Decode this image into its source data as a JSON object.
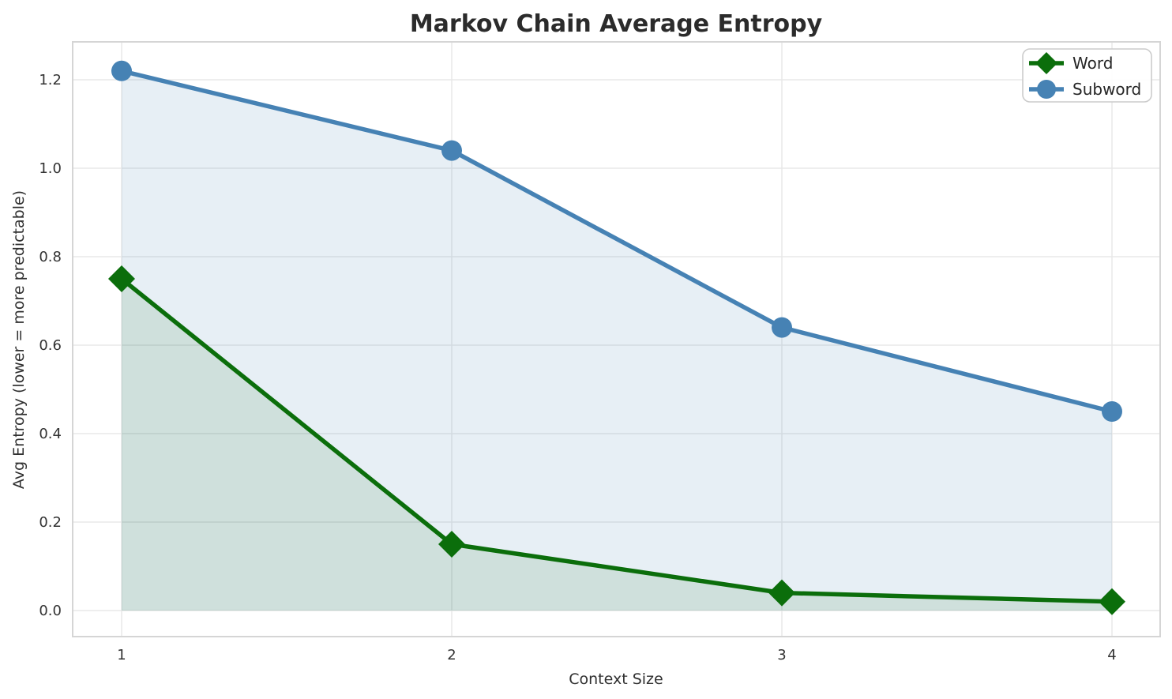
{
  "chart_data": {
    "type": "line",
    "title": "Markov Chain Average Entropy",
    "xlabel": "Context Size",
    "ylabel": "Avg Entropy (lower = more predictable)",
    "x": [
      1,
      2,
      3,
      4
    ],
    "xtick_labels": [
      "1",
      "2",
      "3",
      "4"
    ],
    "ytick_values": [
      0.0,
      0.2,
      0.4,
      0.6,
      0.8,
      1.0,
      1.2
    ],
    "ytick_labels": [
      "0.0",
      "0.2",
      "0.4",
      "0.6",
      "0.8",
      "1.0",
      "1.2"
    ],
    "ylim": [
      -0.06,
      1.29
    ],
    "grid": true,
    "legend_position": "upper right",
    "series": [
      {
        "name": "Word",
        "values": [
          0.75,
          0.15,
          0.04,
          0.02
        ],
        "color": "#0b6e0b",
        "fill": "rgba(0,100,0,0.10)",
        "marker": "diamond"
      },
      {
        "name": "Subword",
        "values": [
          1.22,
          1.04,
          0.64,
          0.45
        ],
        "color": "#4682b4",
        "fill": "rgba(70,130,180,0.13)",
        "marker": "circle"
      }
    ]
  }
}
